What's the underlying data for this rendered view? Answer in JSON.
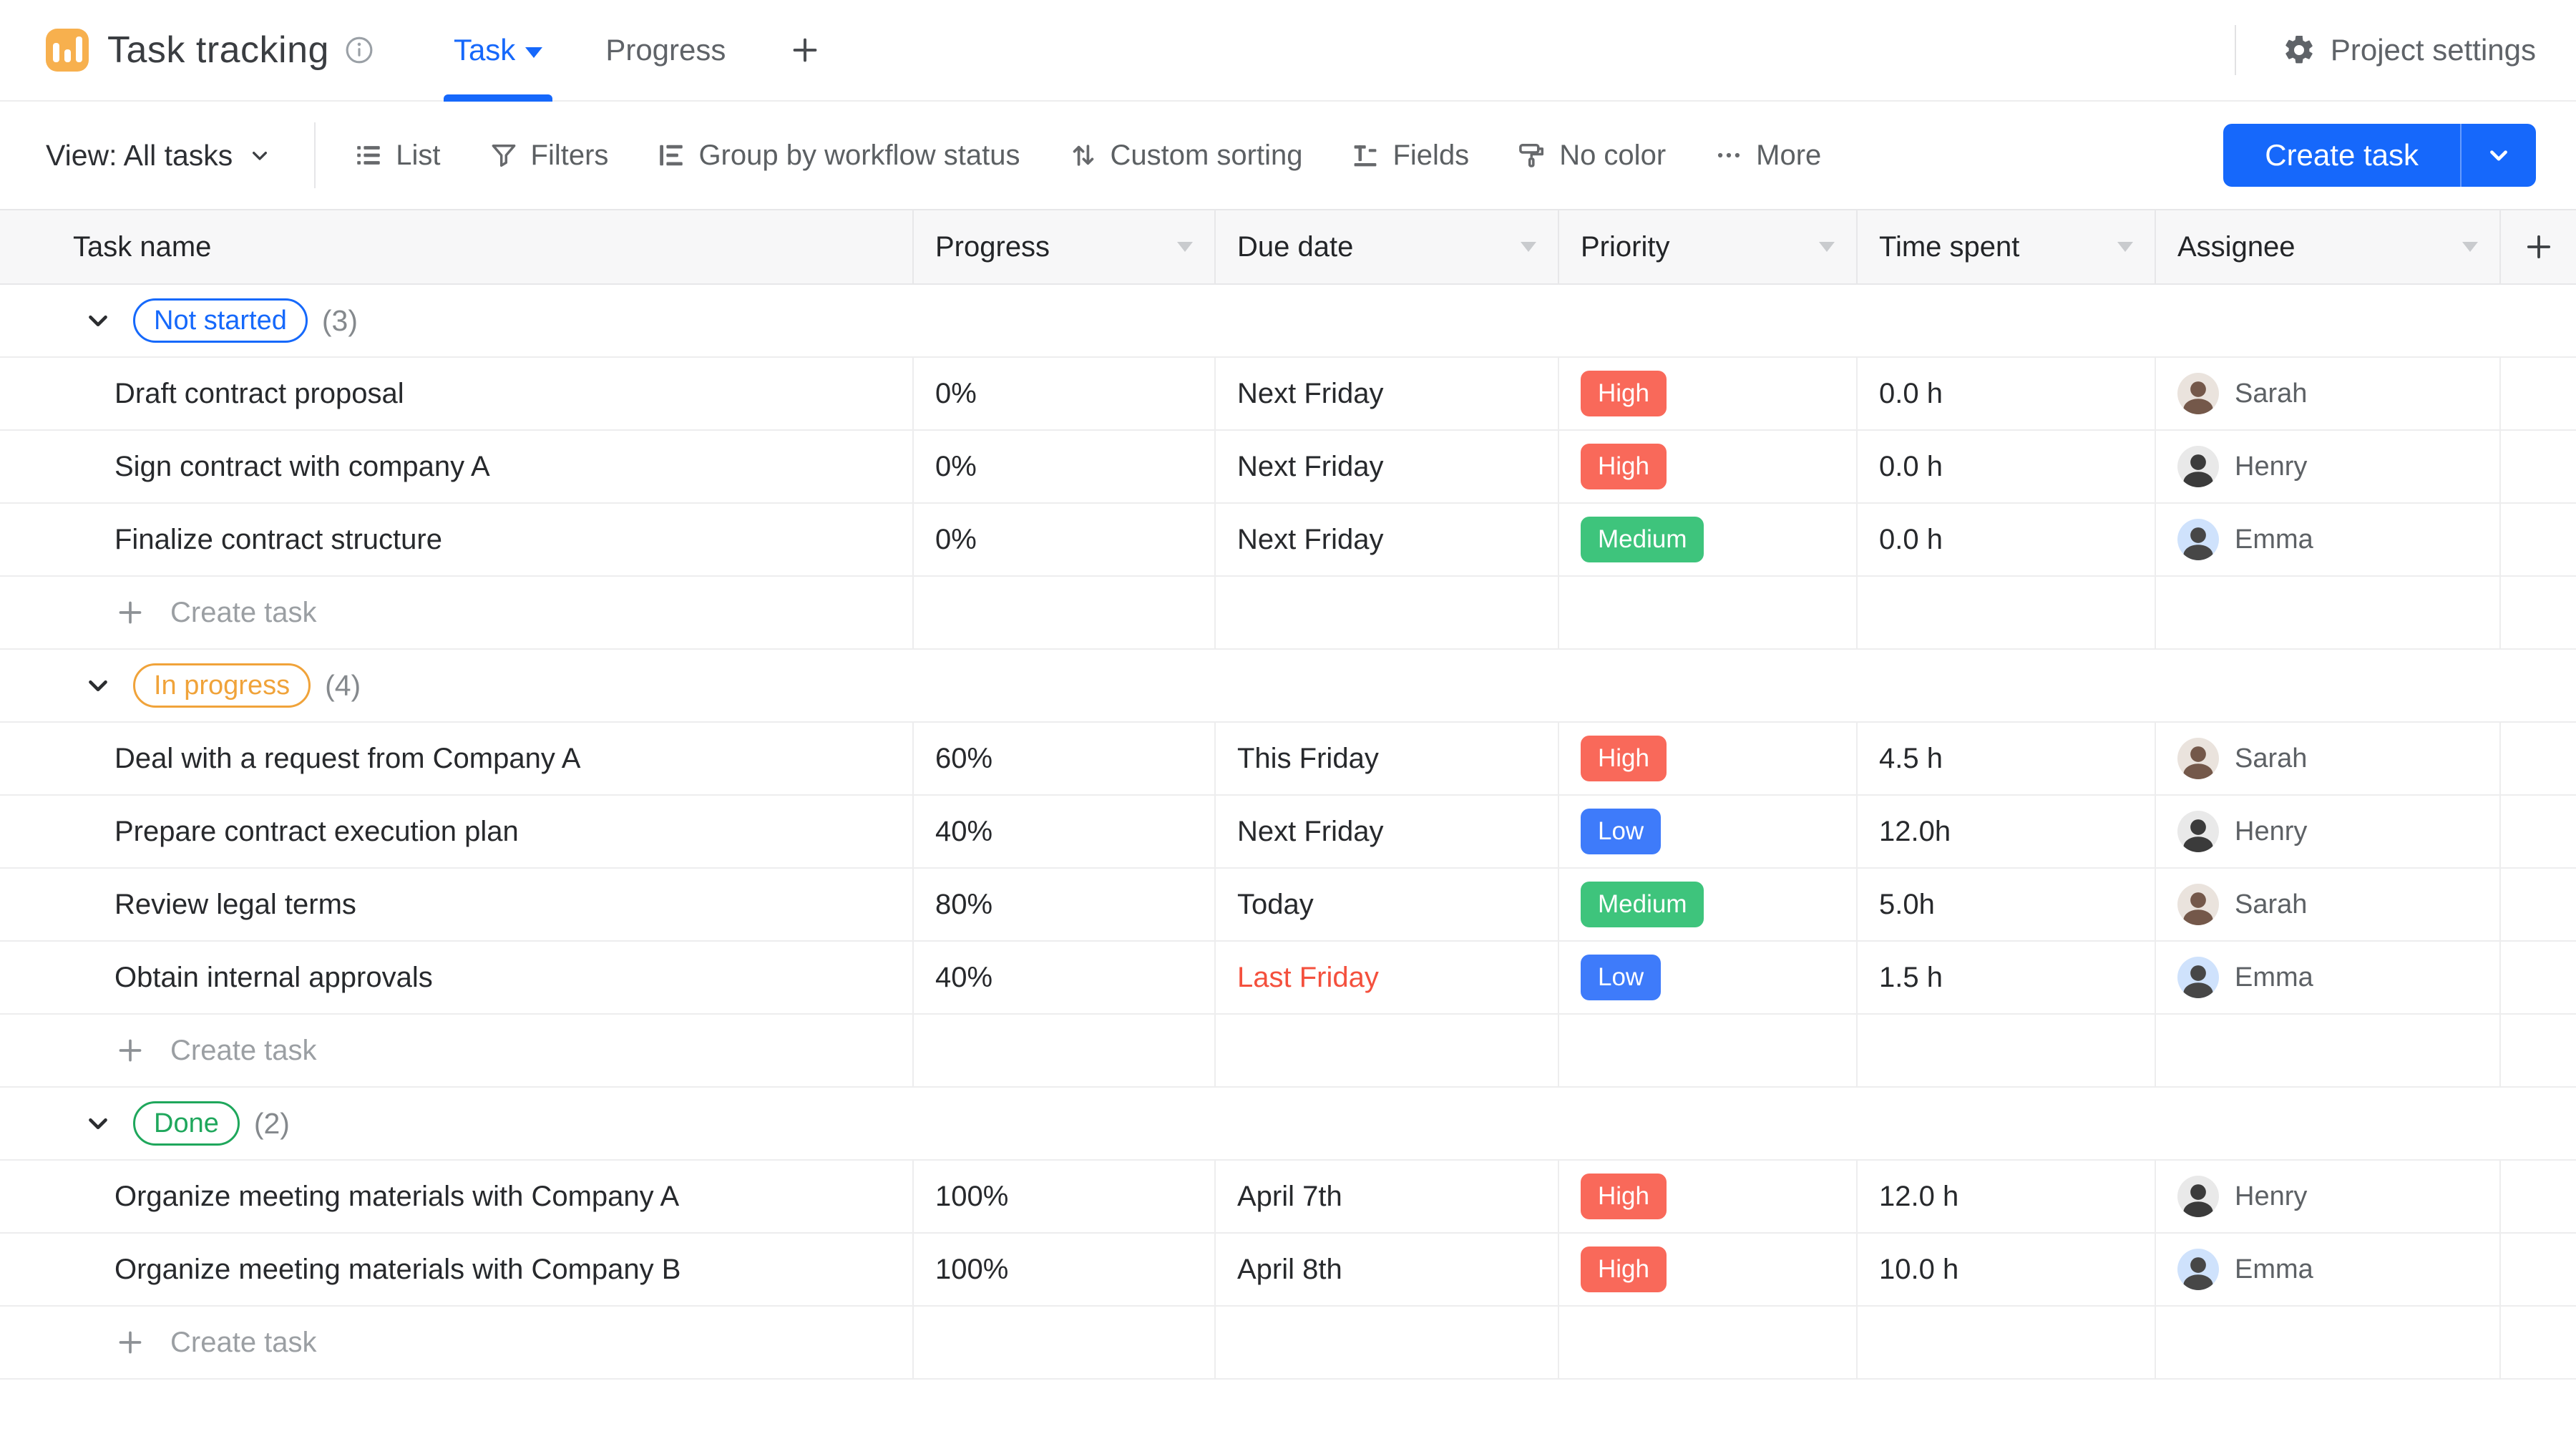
{
  "app": {
    "title": "Task tracking"
  },
  "header": {
    "tabs": [
      {
        "label": "Task",
        "active": true
      },
      {
        "label": "Progress",
        "active": false
      }
    ],
    "settings_label": "Project settings"
  },
  "toolbar": {
    "view_label": "View: All tasks",
    "items": [
      "List",
      "Filters",
      "Group by workflow status",
      "Custom sorting",
      "Fields",
      "No color",
      "More"
    ],
    "create_button": "Create task"
  },
  "colors": {
    "accent_blue": "#1668fb",
    "overdue_red": "#f4503d",
    "priority": {
      "High": "#f9695a",
      "Medium": "#3ec47c",
      "Low": "#3e7bfa"
    },
    "status": {
      "Not started": "#1669fb",
      "In progress": "#f0a33a",
      "Done": "#1fa75c"
    }
  },
  "people": {
    "Sarah": {
      "bg": "#eae3dd",
      "fg": "#74584a"
    },
    "Henry": {
      "bg": "#e9e9e9",
      "fg": "#3b3b3b"
    },
    "Emma": {
      "bg": "#cfe2fc",
      "fg": "#474747"
    }
  },
  "table": {
    "columns": [
      "Task name",
      "Progress",
      "Due date",
      "Priority",
      "Time spent",
      "Assignee"
    ],
    "create_row_label": "Create task",
    "groups": [
      {
        "status": "Not started",
        "count": "(3)",
        "tasks": [
          {
            "name": "Draft contract proposal",
            "progress": "0%",
            "due": "Next Friday",
            "overdue": false,
            "priority": "High",
            "time": "0.0 h",
            "assignee": "Sarah"
          },
          {
            "name": "Sign contract with company A",
            "progress": "0%",
            "due": "Next Friday",
            "overdue": false,
            "priority": "High",
            "time": "0.0 h",
            "assignee": "Henry"
          },
          {
            "name": "Finalize contract structure",
            "progress": "0%",
            "due": "Next Friday",
            "overdue": false,
            "priority": "Medium",
            "time": "0.0 h",
            "assignee": "Emma"
          }
        ]
      },
      {
        "status": "In progress",
        "count": "(4)",
        "tasks": [
          {
            "name": "Deal with a request from Company A",
            "progress": "60%",
            "due": "This Friday",
            "overdue": false,
            "priority": "High",
            "time": "4.5 h",
            "assignee": "Sarah"
          },
          {
            "name": "Prepare contract execution plan",
            "progress": "40%",
            "due": "Next Friday",
            "overdue": false,
            "priority": "Low",
            "time": "12.0h",
            "assignee": "Henry"
          },
          {
            "name": "Review legal terms",
            "progress": "80%",
            "due": "Today",
            "overdue": false,
            "priority": "Medium",
            "time": "5.0h",
            "assignee": "Sarah"
          },
          {
            "name": "Obtain internal approvals",
            "progress": "40%",
            "due": "Last Friday",
            "overdue": true,
            "priority": "Low",
            "time": "1.5 h",
            "assignee": "Emma"
          }
        ]
      },
      {
        "status": "Done",
        "count": "(2)",
        "tasks": [
          {
            "name": "Organize meeting materials with Company A",
            "progress": "100%",
            "due": "April 7th",
            "overdue": false,
            "priority": "High",
            "time": "12.0 h",
            "assignee": "Henry"
          },
          {
            "name": "Organize meeting materials with Company B",
            "progress": "100%",
            "due": "April 8th",
            "overdue": false,
            "priority": "High",
            "time": "10.0 h",
            "assignee": "Emma"
          }
        ]
      }
    ]
  }
}
